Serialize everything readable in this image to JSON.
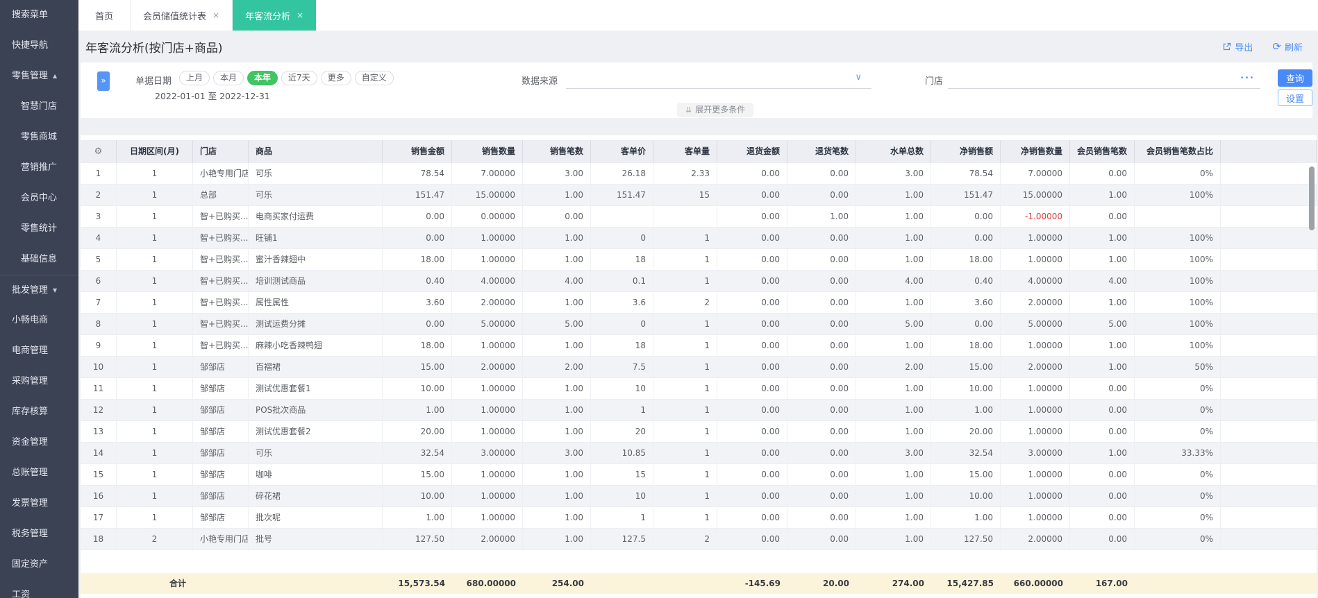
{
  "sidebar": {
    "items": [
      {
        "label": "搜索菜单",
        "type": "top"
      },
      {
        "label": "快捷导航",
        "type": "top"
      },
      {
        "label": "零售管理",
        "type": "group",
        "arrow": "up"
      },
      {
        "label": "智慧门店",
        "type": "sub"
      },
      {
        "label": "零售商城",
        "type": "sub"
      },
      {
        "label": "营销推广",
        "type": "sub"
      },
      {
        "label": "会员中心",
        "type": "sub"
      },
      {
        "label": "零售统计",
        "type": "sub"
      },
      {
        "label": "基础信息",
        "type": "sub"
      },
      {
        "label": "批发管理",
        "type": "group",
        "arrow": "down",
        "divider": true
      },
      {
        "label": "小畅电商",
        "type": "top"
      },
      {
        "label": "电商管理",
        "type": "top"
      },
      {
        "label": "采购管理",
        "type": "top"
      },
      {
        "label": "库存核算",
        "type": "top"
      },
      {
        "label": "资金管理",
        "type": "top"
      },
      {
        "label": "总账管理",
        "type": "top"
      },
      {
        "label": "发票管理",
        "type": "top"
      },
      {
        "label": "税务管理",
        "type": "top"
      },
      {
        "label": "固定资产",
        "type": "top"
      },
      {
        "label": "工资",
        "type": "top"
      }
    ]
  },
  "tabs": [
    {
      "label": "首页",
      "closable": false,
      "active": false
    },
    {
      "label": "会员储值统计表",
      "closable": true,
      "active": false
    },
    {
      "label": "年客流分析",
      "closable": true,
      "active": true
    }
  ],
  "page": {
    "title": "年客流分析(按门店+商品)",
    "export_label": "导出",
    "refresh_label": "刷新"
  },
  "filters": {
    "date_label": "单据日期",
    "date_options": [
      {
        "label": "上月",
        "active": false
      },
      {
        "label": "本月",
        "active": false
      },
      {
        "label": "本年",
        "active": true
      },
      {
        "label": "近7天",
        "active": false
      },
      {
        "label": "更多",
        "active": false
      },
      {
        "label": "自定义",
        "active": false
      }
    ],
    "date_range": "2022-01-01 至 2022-12-31",
    "source_label": "数据来源",
    "store_label": "门店",
    "more_dots": "...",
    "query_label": "查询",
    "settings_label": "设置",
    "expand_label": "展开更多条件"
  },
  "table": {
    "columns": [
      "",
      "日期区间(月)",
      "门店",
      "商品",
      "销售金额",
      "销售数量",
      "销售笔数",
      "客单价",
      "客单量",
      "退货金额",
      "退货笔数",
      "水单总数",
      "净销售额",
      "净销售数量",
      "会员销售笔数",
      "会员销售笔数占比"
    ],
    "rows": [
      [
        "1",
        "1",
        "小艳专用门店",
        "可乐",
        "78.54",
        "7.00000",
        "3.00",
        "26.18",
        "2.33",
        "0.00",
        "0.00",
        "3.00",
        "78.54",
        "7.00000",
        "0.00",
        "0%"
      ],
      [
        "2",
        "1",
        "总部",
        "可乐",
        "151.47",
        "15.00000",
        "1.00",
        "151.47",
        "15",
        "0.00",
        "0.00",
        "1.00",
        "151.47",
        "15.00000",
        "1.00",
        "100%"
      ],
      [
        "3",
        "1",
        "智+已购买...",
        "电商买家付运费",
        "0.00",
        "0.00000",
        "0.00",
        "",
        "",
        "0.00",
        "1.00",
        "1.00",
        "0.00",
        "-1.00000",
        "0.00",
        ""
      ],
      [
        "4",
        "1",
        "智+已购买...",
        "旺铺1",
        "0.00",
        "1.00000",
        "1.00",
        "0",
        "1",
        "0.00",
        "0.00",
        "1.00",
        "0.00",
        "1.00000",
        "1.00",
        "100%"
      ],
      [
        "5",
        "1",
        "智+已购买...",
        "蜜汁香辣翅中",
        "18.00",
        "1.00000",
        "1.00",
        "18",
        "1",
        "0.00",
        "0.00",
        "1.00",
        "18.00",
        "1.00000",
        "1.00",
        "100%"
      ],
      [
        "6",
        "1",
        "智+已购买...",
        "培训测试商品",
        "0.40",
        "4.00000",
        "4.00",
        "0.1",
        "1",
        "0.00",
        "0.00",
        "4.00",
        "0.40",
        "4.00000",
        "4.00",
        "100%"
      ],
      [
        "7",
        "1",
        "智+已购买...",
        "属性属性",
        "3.60",
        "2.00000",
        "1.00",
        "3.6",
        "2",
        "0.00",
        "0.00",
        "1.00",
        "3.60",
        "2.00000",
        "1.00",
        "100%"
      ],
      [
        "8",
        "1",
        "智+已购买...",
        "测试运费分摊",
        "0.00",
        "5.00000",
        "5.00",
        "0",
        "1",
        "0.00",
        "0.00",
        "5.00",
        "0.00",
        "5.00000",
        "5.00",
        "100%"
      ],
      [
        "9",
        "1",
        "智+已购买...",
        "麻辣小吃香辣鸭翅",
        "18.00",
        "1.00000",
        "1.00",
        "18",
        "1",
        "0.00",
        "0.00",
        "1.00",
        "18.00",
        "1.00000",
        "1.00",
        "100%"
      ],
      [
        "10",
        "1",
        "邹邹店",
        "百褶裙",
        "15.00",
        "2.00000",
        "2.00",
        "7.5",
        "1",
        "0.00",
        "0.00",
        "2.00",
        "15.00",
        "2.00000",
        "1.00",
        "50%"
      ],
      [
        "11",
        "1",
        "邹邹店",
        "测试优惠套餐1",
        "10.00",
        "1.00000",
        "1.00",
        "10",
        "1",
        "0.00",
        "0.00",
        "1.00",
        "10.00",
        "1.00000",
        "0.00",
        "0%"
      ],
      [
        "12",
        "1",
        "邹邹店",
        "POS批次商品",
        "1.00",
        "1.00000",
        "1.00",
        "1",
        "1",
        "0.00",
        "0.00",
        "1.00",
        "1.00",
        "1.00000",
        "0.00",
        "0%"
      ],
      [
        "13",
        "1",
        "邹邹店",
        "测试优惠套餐2",
        "20.00",
        "1.00000",
        "1.00",
        "20",
        "1",
        "0.00",
        "0.00",
        "1.00",
        "20.00",
        "1.00000",
        "0.00",
        "0%"
      ],
      [
        "14",
        "1",
        "邹邹店",
        "可乐",
        "32.54",
        "3.00000",
        "3.00",
        "10.85",
        "1",
        "0.00",
        "0.00",
        "3.00",
        "32.54",
        "3.00000",
        "1.00",
        "33.33%"
      ],
      [
        "15",
        "1",
        "邹邹店",
        "咖啡",
        "15.00",
        "1.00000",
        "1.00",
        "15",
        "1",
        "0.00",
        "0.00",
        "1.00",
        "15.00",
        "1.00000",
        "0.00",
        "0%"
      ],
      [
        "16",
        "1",
        "邹邹店",
        "碎花裙",
        "10.00",
        "1.00000",
        "1.00",
        "10",
        "1",
        "0.00",
        "0.00",
        "1.00",
        "10.00",
        "1.00000",
        "0.00",
        "0%"
      ],
      [
        "17",
        "1",
        "邹邹店",
        "批次呢",
        "1.00",
        "1.00000",
        "1.00",
        "1",
        "1",
        "0.00",
        "0.00",
        "1.00",
        "1.00",
        "1.00000",
        "0.00",
        "0%"
      ],
      [
        "18",
        "2",
        "小艳专用门店",
        "批号",
        "127.50",
        "2.00000",
        "1.00",
        "127.5",
        "2",
        "0.00",
        "0.00",
        "1.00",
        "127.50",
        "2.00000",
        "0.00",
        "0%"
      ]
    ],
    "total": {
      "cells": [
        "",
        "合计",
        "",
        "",
        "15,573.54",
        "680.00000",
        "254.00",
        "",
        "",
        "-145.69",
        "20.00",
        "274.00",
        "15,427.85",
        "660.00000",
        "167.00",
        ""
      ]
    }
  },
  "colors": {
    "accent_blue": "#4a8cf7",
    "active_tab_green": "#32c5a0",
    "active_chip_green": "#41c463",
    "negative_red": "#e23b3b",
    "total_row_bg": "#fcf4da",
    "sidebar_bg": "#3b4254",
    "header_row_bg": "#eceef4"
  }
}
